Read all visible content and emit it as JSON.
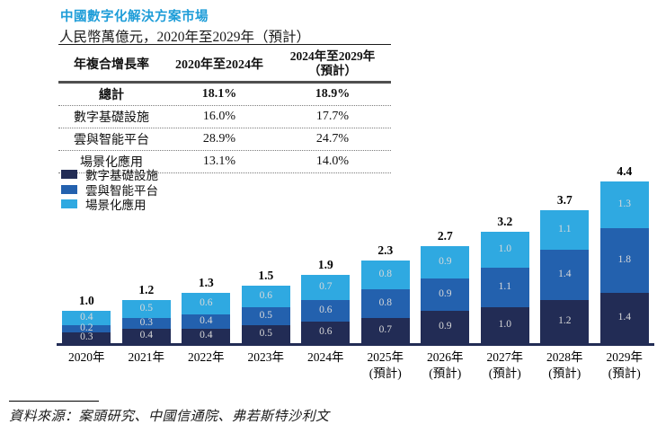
{
  "title": "中國數字化解決方案市場",
  "subtitle": "人民幣萬億元，2020年至2029年（預計）",
  "source": "資料來源：案頭研究、中國信通院、弗若斯特沙利文",
  "colors": {
    "title": "#1e9dd8",
    "axis": "#222c55",
    "infrastructure": "#222c55",
    "cloud": "#2361ae",
    "scenario": "#2fa9e1",
    "segment_label": "#d9d9d9"
  },
  "table": {
    "col1_header": "年複合增長率",
    "col2_header": "2020年至2024年",
    "col3_header_line1": "2024年至2029年",
    "col3_header_line2": "（預計）",
    "rows": [
      {
        "label": "總計",
        "v1": "18.1%",
        "v2": "18.9%",
        "bold": true
      },
      {
        "label": "數字基礎設施",
        "v1": "16.0%",
        "v2": "17.7%",
        "bold": false
      },
      {
        "label": "雲與智能平台",
        "v1": "28.9%",
        "v2": "24.7%",
        "bold": false
      },
      {
        "label": "場景化應用",
        "v1": "13.1%",
        "v2": "14.0%",
        "bold": false
      }
    ]
  },
  "legend": [
    {
      "label": "數字基礎設施",
      "color": "#222c55"
    },
    {
      "label": "雲與智能平台",
      "color": "#2361ae"
    },
    {
      "label": "場景化應用",
      "color": "#2fa9e1"
    }
  ],
  "chart_data": {
    "type": "bar",
    "stacked": true,
    "title": "中國數字化解決方案市場",
    "unit_label": "人民幣萬億元",
    "grid": false,
    "legend_position": "top-left",
    "categories": [
      {
        "label": "2020年",
        "sub": ""
      },
      {
        "label": "2021年",
        "sub": ""
      },
      {
        "label": "2022年",
        "sub": ""
      },
      {
        "label": "2023年",
        "sub": ""
      },
      {
        "label": "2024年",
        "sub": ""
      },
      {
        "label": "2025年",
        "sub": "(預計)"
      },
      {
        "label": "2026年",
        "sub": "(預計)"
      },
      {
        "label": "2027年",
        "sub": "(預計)"
      },
      {
        "label": "2028年",
        "sub": "(預計)"
      },
      {
        "label": "2029年",
        "sub": "(預計)"
      }
    ],
    "totals": [
      1.0,
      1.2,
      1.3,
      1.5,
      1.9,
      2.3,
      2.7,
      3.2,
      3.7,
      4.4
    ],
    "series": [
      {
        "name": "數字基礎設施",
        "color": "#222c55",
        "values": [
          0.3,
          0.4,
          0.4,
          0.5,
          0.6,
          0.7,
          0.9,
          1.0,
          1.2,
          1.4
        ]
      },
      {
        "name": "雲與智能平台",
        "color": "#2361ae",
        "values": [
          0.2,
          0.3,
          0.4,
          0.5,
          0.6,
          0.8,
          0.9,
          1.1,
          1.4,
          1.8
        ]
      },
      {
        "name": "場景化應用",
        "color": "#2fa9e1",
        "values": [
          0.4,
          0.5,
          0.6,
          0.6,
          0.7,
          0.8,
          0.9,
          1.0,
          1.1,
          1.3
        ]
      }
    ]
  }
}
